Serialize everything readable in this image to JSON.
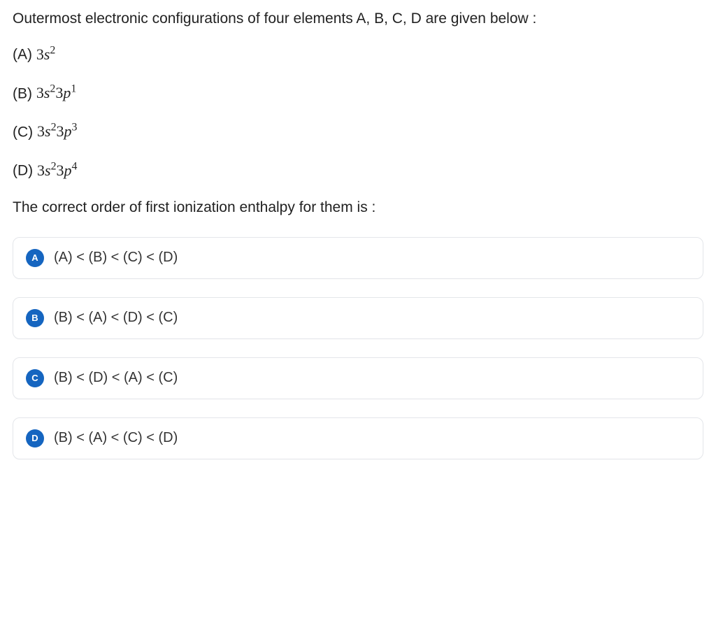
{
  "colors": {
    "background": "#ffffff",
    "text": "#222222",
    "card_border": "#e4e6ea",
    "badge_bg": "#1565c0",
    "badge_fg": "#ffffff"
  },
  "question": {
    "stem": "Outermost electronic configurations of four elements A, B, C, D are given below :",
    "configs": [
      {
        "label": "(A) ",
        "n": "3",
        "orbs": [
          {
            "l": "s",
            "e": "2"
          }
        ]
      },
      {
        "label": "(B) ",
        "n": "3",
        "orbs": [
          {
            "l": "s",
            "e": "2"
          },
          {
            "l": "p",
            "e": "1"
          }
        ]
      },
      {
        "label": "(C) ",
        "n": "3",
        "orbs": [
          {
            "l": "s",
            "e": "2"
          },
          {
            "l": "p",
            "e": "3"
          }
        ]
      },
      {
        "label": "(D) ",
        "n": "3",
        "orbs": [
          {
            "l": "s",
            "e": "2"
          },
          {
            "l": "p",
            "e": "4"
          }
        ]
      }
    ],
    "subprompt": "The correct order of first ionization enthalpy for them is :"
  },
  "options": [
    {
      "letter": "A",
      "text": "(A) < (B) < (C) < (D)"
    },
    {
      "letter": "B",
      "text": "(B) < (A) < (D) < (C)"
    },
    {
      "letter": "C",
      "text": "(B) < (D) < (A) < (C)"
    },
    {
      "letter": "D",
      "text": "(B) < (A) < (C) < (D)"
    }
  ]
}
